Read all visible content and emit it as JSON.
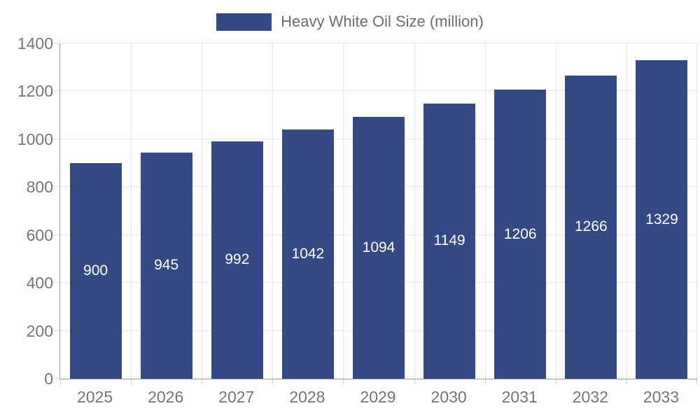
{
  "legend": {
    "label": "Heavy White Oil Size (million)"
  },
  "colors": {
    "bar": "#344a85",
    "axis_line": "#9a9a9a",
    "grid_line": "#e6e6e6",
    "tick_label": "#757575",
    "value_label": "#ffffff",
    "legend_text": "#6c6c75",
    "background": "#ffffff"
  },
  "chart_data": {
    "type": "bar",
    "categories": [
      "2025",
      "2026",
      "2027",
      "2028",
      "2029",
      "2030",
      "2031",
      "2032",
      "2033"
    ],
    "values": [
      900,
      945,
      992,
      1042,
      1094,
      1149,
      1206,
      1266,
      1329
    ],
    "title": "",
    "xlabel": "",
    "ylabel": "",
    "legend_label": "Heavy White Oil Size (million)",
    "ylim": [
      0,
      1400
    ],
    "ytick_step": 200,
    "yticks": [
      0,
      200,
      400,
      600,
      800,
      1000,
      1200,
      1400
    ],
    "grid": true,
    "legend_position": "top",
    "value_label_position": "inside-center",
    "bar_color": "#344a85"
  }
}
